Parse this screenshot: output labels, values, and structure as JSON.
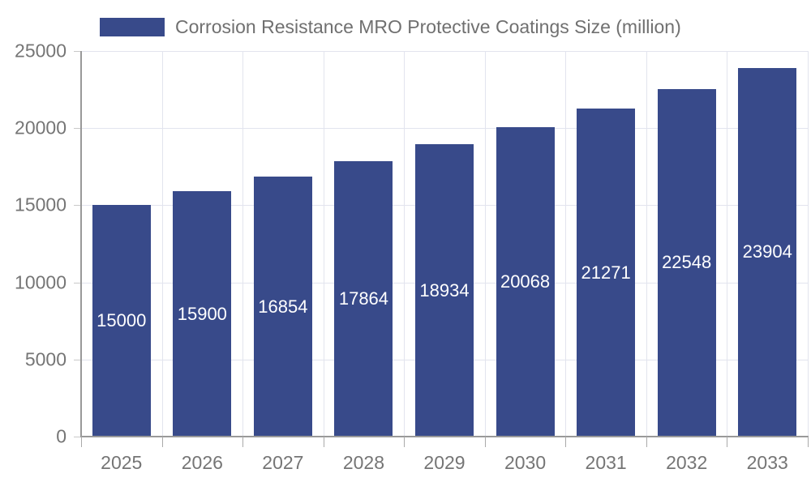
{
  "chart_data": {
    "type": "bar",
    "title": "",
    "legend": {
      "label": "Corrosion Resistance MRO Protective Coatings Size (million)",
      "position": "top"
    },
    "categories": [
      "2025",
      "2026",
      "2027",
      "2028",
      "2029",
      "2030",
      "2031",
      "2032",
      "2033"
    ],
    "series": [
      {
        "name": "Corrosion Resistance MRO Protective Coatings Size (million)",
        "values": [
          15000,
          15900,
          16854,
          17864,
          18934,
          20068,
          21271,
          22548,
          23904
        ]
      }
    ],
    "xlabel": "",
    "ylabel": "",
    "ylim": [
      0,
      25000
    ],
    "y_ticks": [
      0,
      5000,
      10000,
      15000,
      20000,
      25000
    ],
    "grid": true,
    "bar_labels_visible": true
  },
  "colors": {
    "bar": "#384A8A",
    "bar_label_text": "#ffffff",
    "gridline": "#E2E4EE",
    "axis_line": "#999999",
    "axis_text": "#757575",
    "legend_text": "#707070",
    "background": "#ffffff"
  }
}
